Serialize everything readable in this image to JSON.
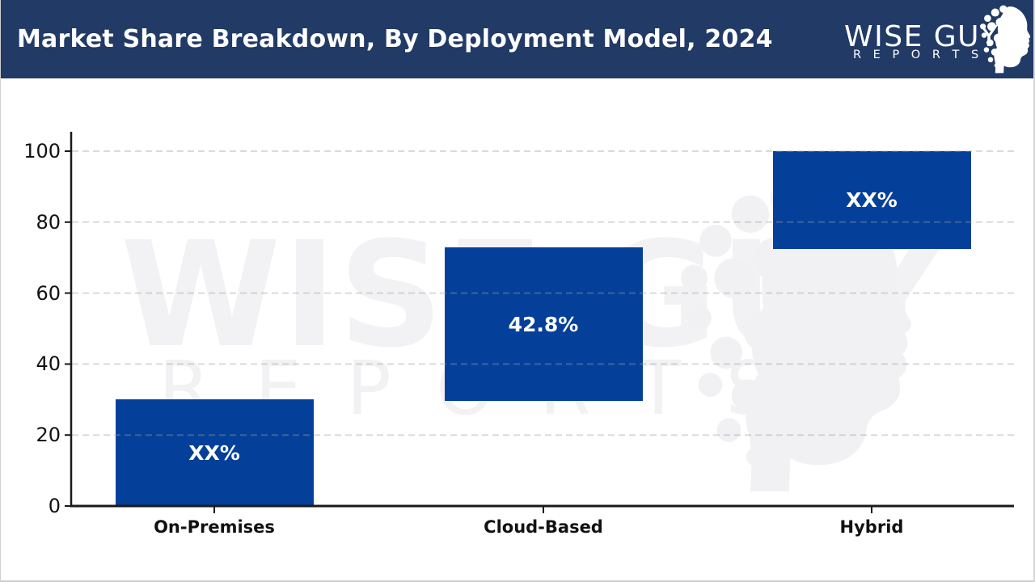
{
  "page": {
    "background": "#ffffff",
    "edge_border_color": "#cfcfcf"
  },
  "header": {
    "background": "#213a66",
    "title": "Market Share Breakdown, By Deployment Model, 2024",
    "logo": {
      "wordmark": "WISE GUY",
      "subtext": "R E P O R T S",
      "color": "#ffffff"
    }
  },
  "watermark": {
    "wordmark": "WISE GUY",
    "subtext": "R E P O R T S",
    "color": "#f2f2f4"
  },
  "chart_data": {
    "type": "bar",
    "variant": "floating segment bars (market-share breakdown summing to 100%)",
    "title": "Market Share Breakdown, By Deployment Model, 2024",
    "categories": [
      "On-Premises",
      "Cloud-Based",
      "Hybrid"
    ],
    "segments": [
      {
        "category": "On-Premises",
        "start": 0,
        "end": 30,
        "label": "XX%"
      },
      {
        "category": "Cloud-Based",
        "start": 30,
        "end": 72.8,
        "label": "42.8%"
      },
      {
        "category": "Hybrid",
        "start": 72.8,
        "end": 100,
        "label": "XX%"
      }
    ],
    "values_displayed": [
      "XX%",
      "42.8%",
      "XX%"
    ],
    "xlabel": "",
    "ylabel": "",
    "y_ticks": [
      0,
      20,
      40,
      60,
      80,
      100
    ],
    "ylim": [
      0,
      100
    ],
    "legend": "none",
    "grid": {
      "axis": "y",
      "style": "dashed",
      "color": "#9f9f9f",
      "opacity": 0.38
    },
    "bar_color": "#04409a",
    "bar_label_color": "#ffffff",
    "axis_color": "#1a1a1a",
    "tick_label_color": "#111111"
  }
}
